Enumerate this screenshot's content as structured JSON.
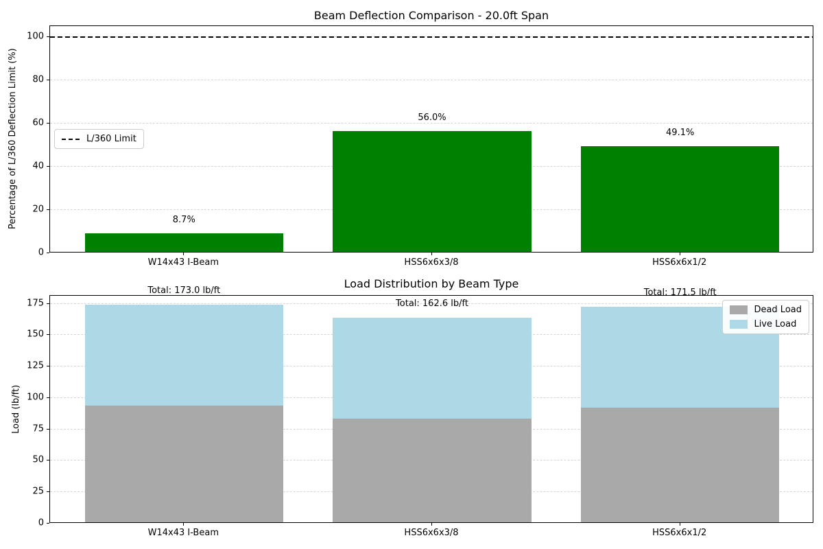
{
  "figure": {
    "background": "#ffffff"
  },
  "chart_data": [
    {
      "type": "bar",
      "title": "Beam Deflection Comparison - 20.0ft Span",
      "xlabel": "",
      "ylabel": "Percentage of L/360 Deflection Limit (%)",
      "categories": [
        "W14x43 I-Beam",
        "HSS6x6x3/8",
        "HSS6x6x1/2"
      ],
      "values": [
        8.7,
        56.0,
        49.1
      ],
      "value_labels": [
        "8.7%",
        "56.0%",
        "49.1%"
      ],
      "bar_color": "#008000",
      "bar_width_fraction": 0.8,
      "ylim": [
        0,
        105.2
      ],
      "yticks": [
        0,
        20,
        40,
        60,
        80,
        100
      ],
      "grid": "dashed-horizontal",
      "reference_line": {
        "y": 100,
        "color": "#000000",
        "style": "dashed"
      },
      "legend": {
        "position": "center-left",
        "entries": [
          {
            "label": "L/360 Limit",
            "swatch": "dashed-line",
            "color": "#000000"
          }
        ]
      }
    },
    {
      "type": "stacked-bar",
      "title": "Load Distribution by Beam Type",
      "xlabel": "",
      "ylabel": "Load (lb/ft)",
      "categories": [
        "W14x43 I-Beam",
        "HSS6x6x3/8",
        "HSS6x6x1/2"
      ],
      "series": [
        {
          "name": "Dead Load",
          "color": "#a9a9a9",
          "values": [
            93.0,
            82.6,
            91.5
          ]
        },
        {
          "name": "Live Load",
          "color": "#add8e6",
          "values": [
            80.0,
            80.0,
            80.0
          ]
        }
      ],
      "totals": [
        173.0,
        162.6,
        171.5
      ],
      "total_labels": [
        "Total: 173.0 lb/ft",
        "Total: 162.6 lb/ft",
        "Total: 171.5 lb/ft"
      ],
      "bar_width_fraction": 0.8,
      "ylim": [
        0,
        181.4
      ],
      "yticks": [
        0,
        25,
        50,
        75,
        100,
        125,
        150,
        175
      ],
      "grid": "dashed-horizontal",
      "legend": {
        "position": "top-right",
        "entries": [
          {
            "label": "Dead Load",
            "swatch": "box",
            "color": "#a9a9a9"
          },
          {
            "label": "Live Load",
            "swatch": "box",
            "color": "#add8e6"
          }
        ]
      }
    }
  ]
}
